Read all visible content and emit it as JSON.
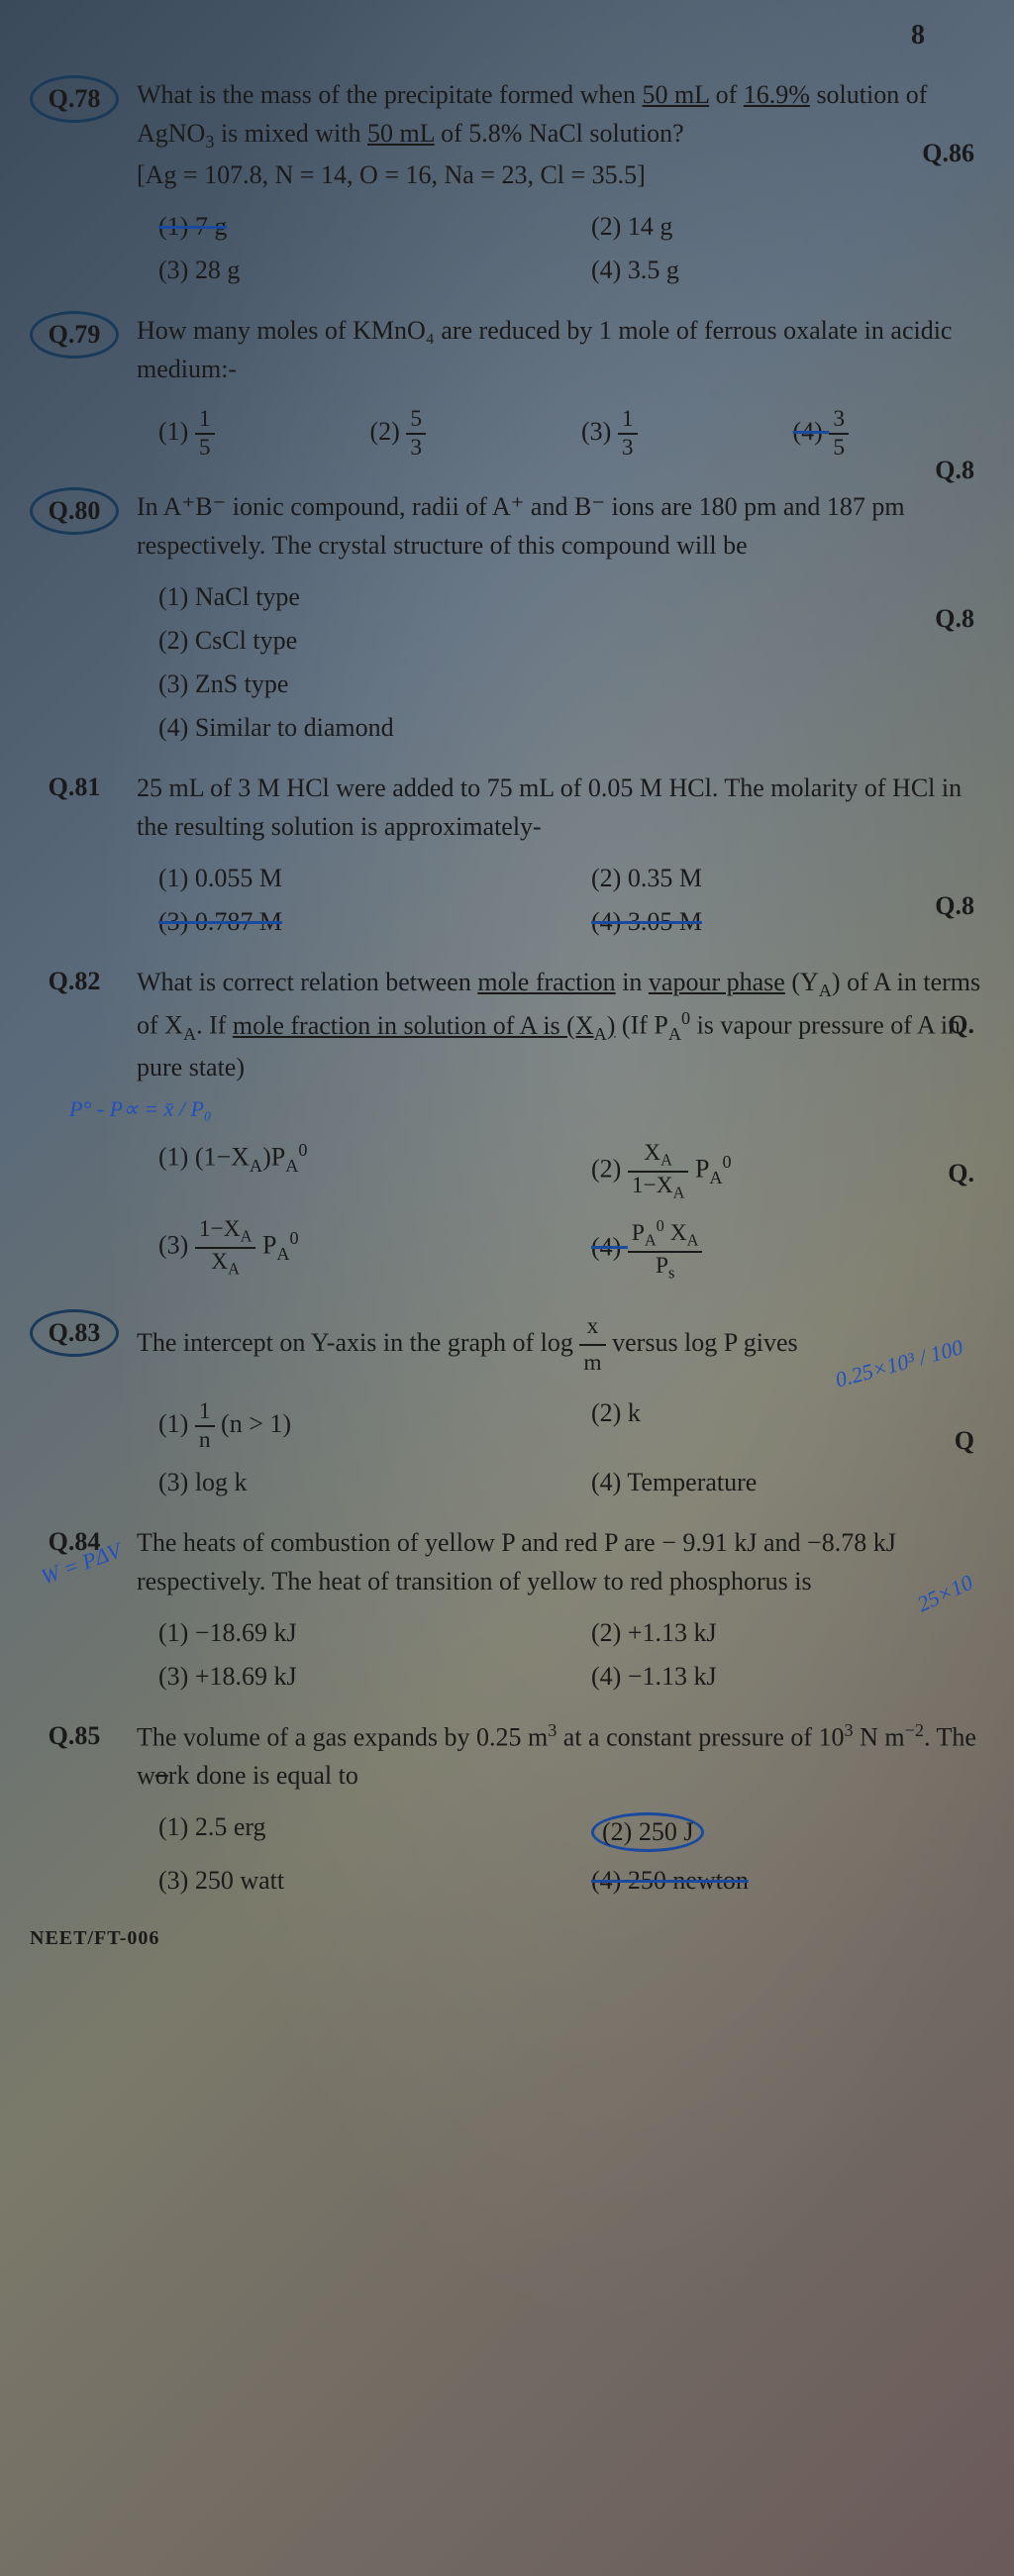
{
  "page_number": "8",
  "footer": "NEET/FT-006",
  "side_labels": [
    "Q.86",
    "Q.8",
    "Q.8",
    "Q.8",
    "Q.",
    "Q.",
    "Q"
  ],
  "questions": [
    {
      "num": "Q.78",
      "circled": true,
      "text_parts": [
        "What is the mass of the precipitate formed when ",
        "50 mL",
        " of ",
        "16.9%",
        " solution of AgNO",
        "3",
        " is mixed with ",
        "50 mL",
        " of 5.8% NaCl solution?"
      ],
      "extra": "[Ag = 107.8, N = 14, O = 16, Na = 23, Cl = 35.5]",
      "options": [
        {
          "label": "(1) 7 g",
          "marked": "struck"
        },
        {
          "label": "(2) 14 g"
        },
        {
          "label": "(3) 28 g"
        },
        {
          "label": "(4) 3.5 g"
        }
      ]
    },
    {
      "num": "Q.79",
      "circled": true,
      "text": "How many moles of KMnO₄ are reduced by 1 mole of ferrous oxalate in acidic medium:-",
      "options": [
        {
          "frac": {
            "n": "1",
            "d": "5"
          },
          "pre": "(1)"
        },
        {
          "frac": {
            "n": "5",
            "d": "3"
          },
          "pre": "(2)"
        },
        {
          "frac": {
            "n": "1",
            "d": "3"
          },
          "pre": "(3)"
        },
        {
          "frac": {
            "n": "3",
            "d": "5"
          },
          "pre": "(4)",
          "marked": "struck"
        }
      ],
      "inline": true
    },
    {
      "num": "Q.80",
      "circled": true,
      "text": "In A⁺B⁻ ionic compound, radii of A⁺ and B⁻ ions are 180 pm and 187 pm respectively. The crystal structure of this compound will be",
      "options": [
        {
          "label": "(1) NaCl type"
        },
        {
          "label": "(2) CsCl type"
        },
        {
          "label": "(3) ZnS type"
        },
        {
          "label": "(4) Similar to diamond"
        }
      ],
      "single_col": true
    },
    {
      "num": "Q.81",
      "text": "25 mL of 3 M HCl were added to 75 mL of 0.05 M HCl. The molarity of HCl in the resulting solution is approximately-",
      "options": [
        {
          "label": "(1) 0.055 M"
        },
        {
          "label": "(2) 0.35 M"
        },
        {
          "label": "(3) 0.787 M",
          "marked": "struck"
        },
        {
          "label": "(4) 3.05 M",
          "marked": "struck"
        }
      ]
    },
    {
      "num": "Q.82",
      "text_html": "What is correct relation between <u>mole fraction</u> in <u>vapour phase</u> (Y<sub>A</sub>) of A in terms of X<sub>A</sub>. If <u>mole fraction in solution of A is (X<sub>A</sub>)</u> (If P<sub>A</sub><sup>0</sup> is vapour pressure of A in pure state)",
      "annotation": "P° - P∝ = x̄ / P₀",
      "options_html": [
        "(1) (1−X<sub>A</sub>)P<sub>A</sub><sup>0</sup>",
        "(2) <span class='frac'><span class='num'>X<sub>A</sub></span><span class='den'>1−X<sub>A</sub></span></span> P<sub>A</sub><sup>0</sup>",
        "(3) <span class='frac'><span class='num'>1−X<sub>A</sub></span><span class='den'>X<sub>A</sub></span></span> P<sub>A</sub><sup>0</sup>",
        "(4) <span class='frac'><span class='num'>P<sub>A</sub><sup>0</sup> X<sub>A</sub></span><span class='den'>P<sub>s</sub></span></span>"
      ],
      "marked_idx": 3
    },
    {
      "num": "Q.83",
      "circled": true,
      "text_html": "The intercept on Y-axis in the graph of log <span class='frac'><span class='num'>x</span><span class='den'>m</span></span> versus log P gives",
      "annotation_right": "0.25×10³ / 100",
      "options": [
        {
          "html": "(1) <span class='frac'><span class='num'>1</span><span class='den'>n</span></span> (n > 1)"
        },
        {
          "label": "(2) k"
        },
        {
          "label": "(3) log k"
        },
        {
          "label": "(4) Temperature"
        }
      ]
    },
    {
      "num": "Q.84",
      "text": "The heats of combustion of yellow P and red P are − 9.91 kJ and −8.78 kJ respectively. The heat of transition of yellow to red phosphorus is",
      "annotation_left": "W = PΔV",
      "annotation_right": "25×10",
      "options": [
        {
          "label": "(1) −18.69 kJ"
        },
        {
          "label": "(2) +1.13 kJ"
        },
        {
          "label": "(3) +18.69 kJ"
        },
        {
          "label": "(4) −1.13 kJ"
        }
      ]
    },
    {
      "num": "Q.85",
      "text_html": "The volume of a gas expands by 0.25 m<sup>3</sup> at a constant pressure of 10<sup>3</sup> N m<sup>−2</sup>. The w<span style='text-decoration:line-through'>o</span>rk done is equal to",
      "options": [
        {
          "label": "(1) 2.5 erg"
        },
        {
          "label": "(2) 250 J",
          "marked": "circled"
        },
        {
          "label": "(3) 250 watt"
        },
        {
          "label": "(4) 250 newton",
          "marked": "struck"
        }
      ]
    }
  ]
}
